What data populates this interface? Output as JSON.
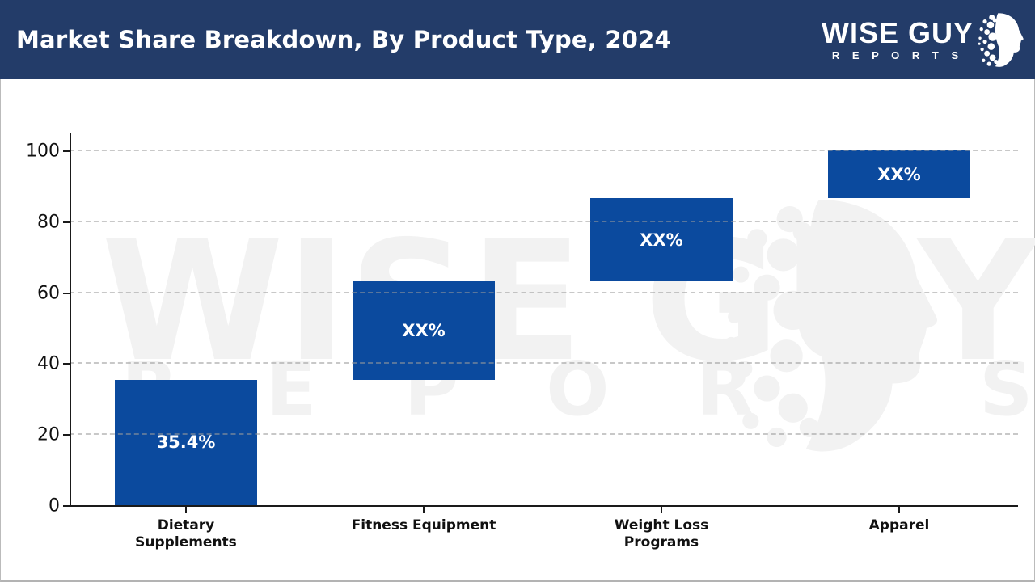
{
  "header": {
    "title": "Market Share Breakdown, By Product Type, 2024",
    "bg_color": "#233c69",
    "logo": {
      "line1": "WISE GUY",
      "line2": "R E P O R T S"
    }
  },
  "watermark": {
    "line1": "WISE GUY",
    "line2": "R E P O R T S"
  },
  "chart_data": {
    "type": "bar",
    "subtype": "waterfall",
    "title": "Market Share Breakdown, By Product Type, 2024",
    "categories": [
      "Dietary\nSupplements",
      "Fitness Equipment",
      "Weight Loss\nPrograms",
      "Apparel"
    ],
    "segments": [
      {
        "category": "Dietary Supplements",
        "start": 0,
        "end": 35.4,
        "label": "35.4%"
      },
      {
        "category": "Fitness Equipment",
        "start": 35.4,
        "end": 63,
        "label": "XX%"
      },
      {
        "category": "Weight Loss Programs",
        "start": 63,
        "end": 86.5,
        "label": "XX%"
      },
      {
        "category": "Apparel",
        "start": 86.5,
        "end": 100,
        "label": "XX%"
      }
    ],
    "ylim": [
      0,
      100
    ],
    "yticks": [
      0,
      20,
      40,
      60,
      80,
      100
    ],
    "grid": "horizontal-dashed-above-bars",
    "legend": "none",
    "bar_color": "#0b4a9e",
    "bar_label_color": "#ffffff",
    "axis_color": "#1a1a1a",
    "gridline_color": "#c9c9c9"
  }
}
